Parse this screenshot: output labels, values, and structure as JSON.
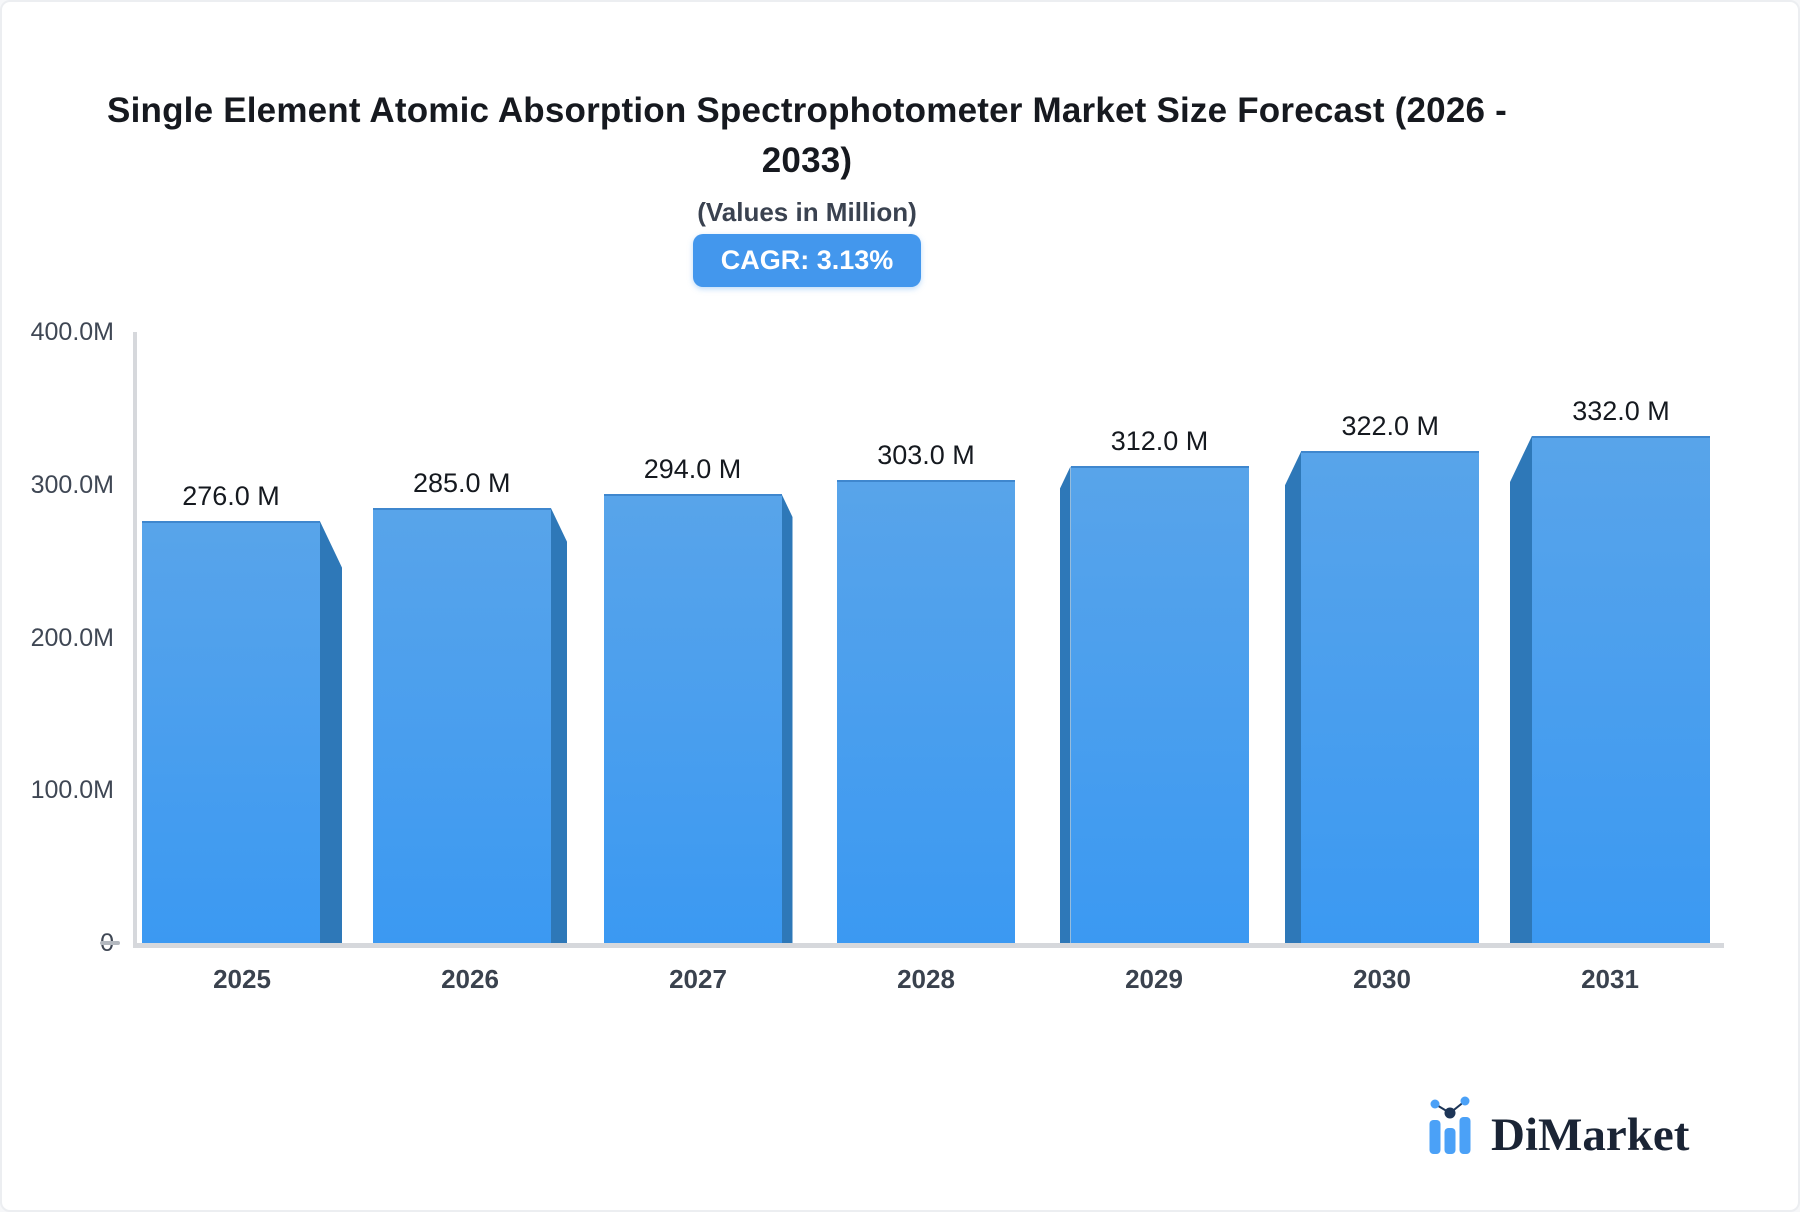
{
  "chart_data": {
    "type": "bar",
    "title": "Single Element Atomic Absorption Spectrophotometer Market Size Forecast (2026 - 2033)",
    "subtitle": "(Values in Million)",
    "cagr_label": "CAGR: 3.13%",
    "unit": "Million",
    "categories": [
      "2025",
      "2026",
      "2027",
      "2028",
      "2029",
      "2030",
      "2031"
    ],
    "values": [
      276,
      285,
      294,
      303,
      312,
      322,
      332
    ],
    "bar_labels": [
      "276.0 M",
      "285.0 M",
      "294.0 M",
      "303.0 M",
      "312.0 M",
      "322.0 M",
      "332.0 M"
    ],
    "ylim": [
      0,
      400
    ],
    "y_ticks": [
      {
        "value": 400,
        "label": "400.0M"
      },
      {
        "value": 300,
        "label": "300.0M"
      },
      {
        "value": 200,
        "label": "200.0M"
      },
      {
        "value": 100,
        "label": "100.0M"
      },
      {
        "value": 0,
        "label": "0"
      }
    ],
    "grid": false,
    "legend": false
  },
  "footer": {
    "brand": "DiMarket"
  },
  "colors": {
    "accent": "#4397ED",
    "badge_text": "#FFFFFF",
    "axis": "#D6D8DC",
    "title_text": "#16191F",
    "bar_top": "#58A4EA",
    "bar_bottom": "#3B99F2",
    "bar_side": "#2E78B8"
  }
}
